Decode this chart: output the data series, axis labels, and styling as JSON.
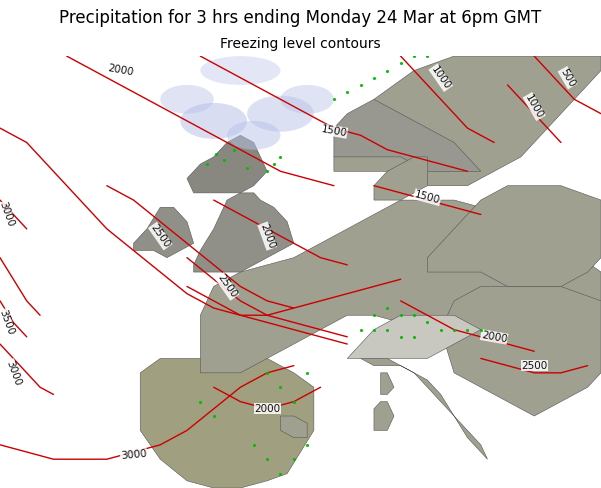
{
  "title": "Precipitation for 3 hrs ending Monday 24 Mar at 6pm GMT",
  "subtitle": "Freezing level contours",
  "title_fontsize": 12,
  "subtitle_fontsize": 10,
  "bg_color": "#ffffff",
  "ocean_color": "#c8d0f0",
  "land_color": "#a8a8a8",
  "fig_width": 6.01,
  "fig_height": 4.88,
  "dpi": 100,
  "extent": [
    -20,
    25,
    35,
    65
  ],
  "contour_color": "#cc0000",
  "contour_lw": 1.0,
  "label_fontsize": 7.5
}
